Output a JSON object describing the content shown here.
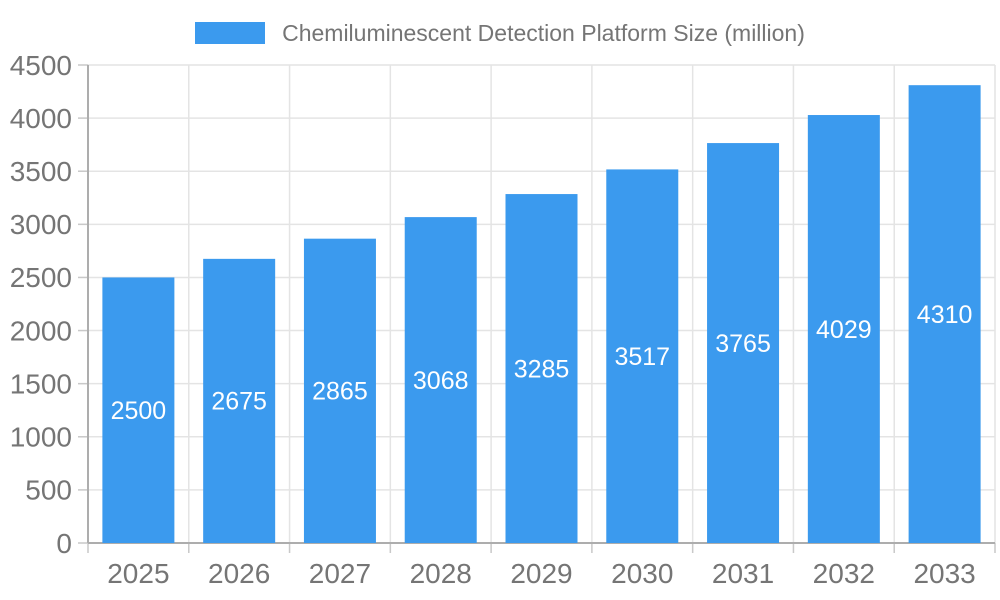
{
  "legend": {
    "label": "Chemiluminescent Detection Platform Size (million)"
  },
  "chart_data": {
    "type": "bar",
    "title": "Chemiluminescent Detection Platform Size (million)",
    "categories": [
      "2025",
      "2026",
      "2027",
      "2028",
      "2029",
      "2030",
      "2031",
      "2032",
      "2033"
    ],
    "series": [
      {
        "name": "Chemiluminescent Detection Platform Size (million)",
        "values": [
          2500,
          2675,
          2865,
          3068,
          3285,
          3517,
          3765,
          4029,
          4310
        ]
      }
    ],
    "xlabel": "",
    "ylabel": "",
    "ylim": [
      0,
      4500
    ],
    "yticks": [
      0,
      500,
      1000,
      1500,
      2000,
      2500,
      3000,
      3500,
      4000,
      4500
    ],
    "grid": true,
    "legend_position": "top",
    "value_labels": "inside-center",
    "colors": {
      "bar": "#3B9AEE",
      "value_label": "#FFFFFF",
      "axis_text": "#757575",
      "grid": "#E4E4E4",
      "axis_line": "#ADADAD",
      "tick": "#C9C9C9",
      "background": "#FFFFFF"
    }
  }
}
